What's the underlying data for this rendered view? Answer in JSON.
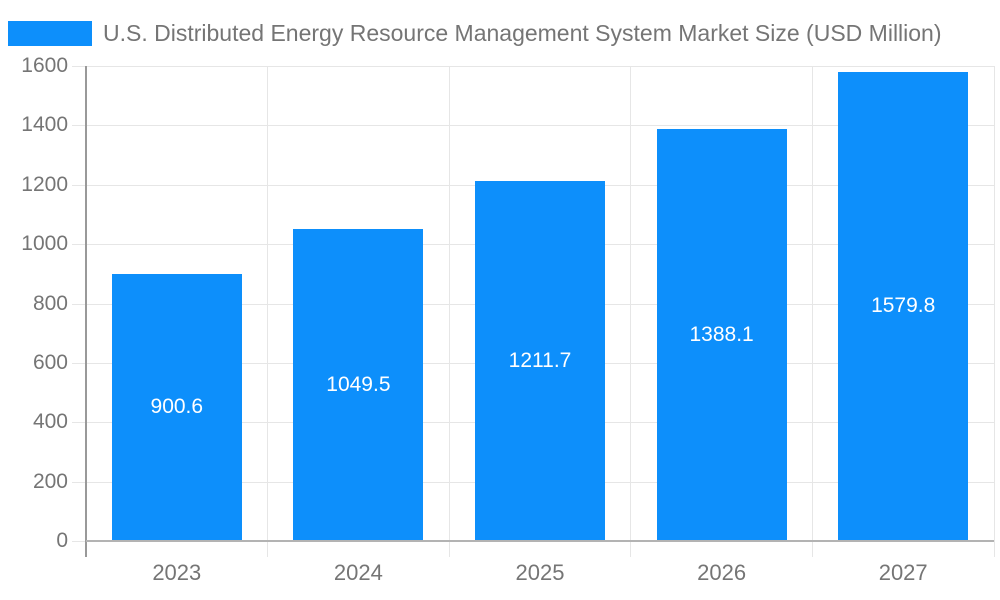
{
  "chart_data": {
    "type": "bar",
    "title": "U.S. Distributed Energy Resource Management System Market Size (USD Million)",
    "categories": [
      "2023",
      "2024",
      "2025",
      "2026",
      "2027"
    ],
    "values": [
      900.6,
      1049.5,
      1211.7,
      1388.1,
      1579.8
    ],
    "series": [
      {
        "name": "U.S. Distributed Energy Resource Management System Market Size (USD Million)",
        "values": [
          900.6,
          1049.5,
          1211.7,
          1388.1,
          1579.8
        ]
      }
    ],
    "xlabel": "",
    "ylabel": "",
    "ylim": [
      0,
      1600
    ],
    "yticks": [
      0,
      200,
      400,
      600,
      800,
      1000,
      1200,
      1400,
      1600
    ],
    "grid": true,
    "legend_position": "top-left",
    "data_labels": "inside-center-white"
  },
  "colors": {
    "bar": "#0d8ffb",
    "grid": "#e6e6e6",
    "y_axis_line": "#999999",
    "x_axis_line": "#b3b3b3",
    "text_gray": "#757575",
    "bar_label_text": "#ffffff",
    "background": "#ffffff"
  }
}
